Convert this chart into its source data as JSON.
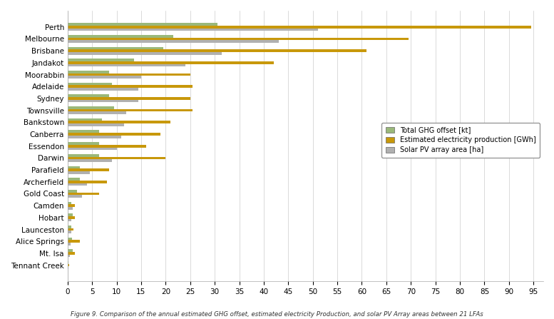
{
  "cities": [
    "Perth",
    "Melbourne",
    "Brisbane",
    "Jandakot",
    "Moorabbin",
    "Adelaide",
    "Sydney",
    "Townsville",
    "Bankstown",
    "Canberra",
    "Essendon",
    "Darwin",
    "Parafield",
    "Archerfield",
    "Gold Coast",
    "Camden",
    "Hobart",
    "Launceston",
    "Alice Springs",
    "Mt. Isa",
    "Tennant Creek"
  ],
  "ghg_offset": [
    30.5,
    21.5,
    19.5,
    13.5,
    8.5,
    9.0,
    8.5,
    9.5,
    7.0,
    6.5,
    6.5,
    6.5,
    2.5,
    2.5,
    2.0,
    0.8,
    1.0,
    0.7,
    0.9,
    1.0,
    0.2
  ],
  "elec_production": [
    94.5,
    69.5,
    61.0,
    42.0,
    25.0,
    25.5,
    25.0,
    25.5,
    21.0,
    19.0,
    16.0,
    20.0,
    8.5,
    8.0,
    6.5,
    1.5,
    1.5,
    1.2,
    2.5,
    1.5,
    0.3
  ],
  "solar_pv_area": [
    51.0,
    43.0,
    31.5,
    24.0,
    15.0,
    14.5,
    14.5,
    12.0,
    11.5,
    11.0,
    10.0,
    9.0,
    4.5,
    4.0,
    3.0,
    1.0,
    0.8,
    0.7,
    0.6,
    0.5,
    0.2
  ],
  "ghg_color": "#9ab87a",
  "elec_color": "#c8980a",
  "solar_color": "#b0b0b0",
  "xlim": [
    0,
    97
  ],
  "xticks": [
    0,
    5,
    10,
    15,
    20,
    25,
    30,
    35,
    40,
    45,
    50,
    55,
    60,
    65,
    70,
    75,
    80,
    85,
    90,
    95
  ],
  "legend_labels": [
    "Total GHG offset [kt]",
    "Estimated electricity production [GWh]",
    "Solar PV array area [ha]"
  ],
  "caption": "Figure 9. Comparison of the annual estimated GHG offset, estimated electricity Production, and solar PV Array areas between 21 LFAs",
  "bg_color": "#ffffff"
}
